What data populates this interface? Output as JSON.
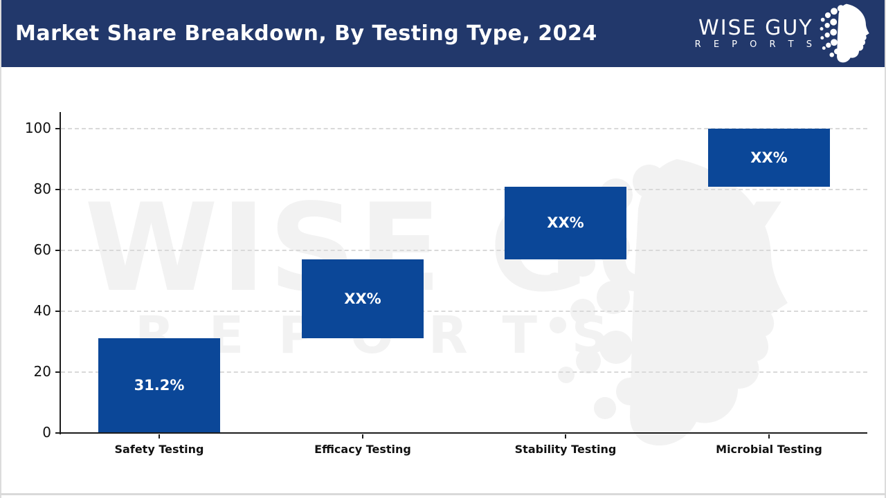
{
  "header": {
    "title": "Market Share Breakdown, By Testing Type, 2024",
    "logo_line1": "WISE GUY",
    "logo_line2": "R E P O R T S"
  },
  "watermark": {
    "line1": "WISE GUY",
    "line2": "R E P O R T S"
  },
  "colors": {
    "header_bg": "#22386b",
    "bar": "#0b4798",
    "grid": "#d9d9d9",
    "axis": "#1c1c1c",
    "watermark": "#f2f2f2",
    "title_text": "#ffffff",
    "bar_label_text": "#ffffff"
  },
  "chart_data": {
    "type": "bar",
    "subtype": "floating-segment-waterfall",
    "title": "Market Share Breakdown, By Testing Type, 2024",
    "categories": [
      "Safety Testing",
      "Efficacy Testing",
      "Stability Testing",
      "Microbial Testing"
    ],
    "segments": [
      {
        "category": "Safety Testing",
        "start": 0,
        "end": 31.2,
        "label": "31.2%"
      },
      {
        "category": "Efficacy Testing",
        "start": 31.2,
        "end": 57,
        "label": "XX%"
      },
      {
        "category": "Stability Testing",
        "start": 57,
        "end": 81,
        "label": "XX%"
      },
      {
        "category": "Microbial Testing",
        "start": 81,
        "end": 100,
        "label": "XX%"
      }
    ],
    "xlabel": "",
    "ylabel": "",
    "yticks": [
      0,
      20,
      40,
      60,
      80,
      100
    ],
    "ylim": [
      0,
      105
    ],
    "grid": "horizontal-dashed",
    "legend": "none",
    "bar_color": "#0b4798"
  }
}
